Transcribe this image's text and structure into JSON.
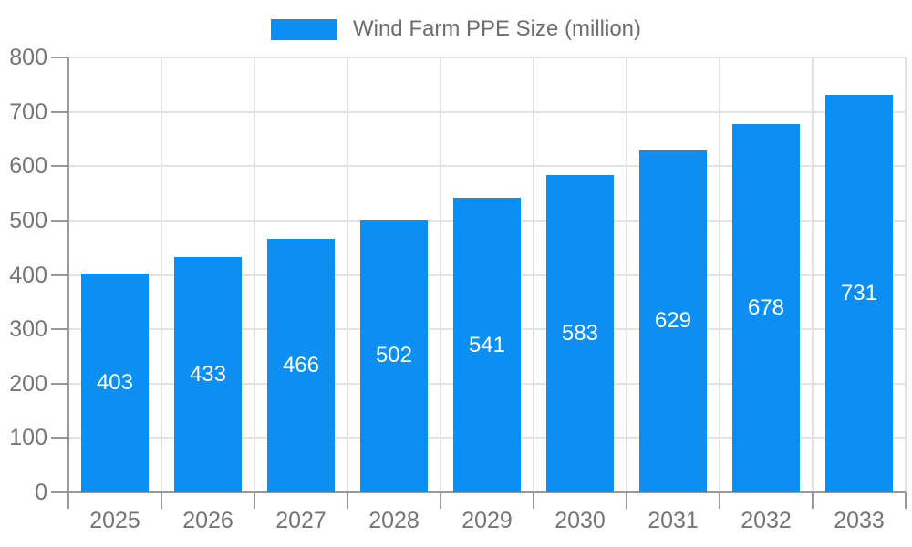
{
  "legend": {
    "label": "Wind Farm PPE Size (million)"
  },
  "chart_data": {
    "type": "bar",
    "title": "Wind Farm PPE Size (million)",
    "series_name": "Wind Farm PPE Size (million)",
    "categories": [
      "2025",
      "2026",
      "2027",
      "2028",
      "2029",
      "2030",
      "2031",
      "2032",
      "2033"
    ],
    "values": [
      403,
      433,
      466,
      502,
      541,
      583,
      629,
      678,
      731
    ],
    "xlabel": "",
    "ylabel": "",
    "ylim": [
      0,
      800
    ],
    "yticks": [
      0,
      100,
      200,
      300,
      400,
      500,
      600,
      700,
      800
    ],
    "grid": true,
    "legend_position": "top-center",
    "bar_label_position": "center",
    "colors": {
      "bar": "#0b8ff2",
      "bar_label": "#ffffff",
      "axis_line": "#999999",
      "grid_line": "#e2e2e2",
      "tick_label": "#757575",
      "legend_text": "#6e6e6e",
      "background": "#ffffff"
    }
  }
}
